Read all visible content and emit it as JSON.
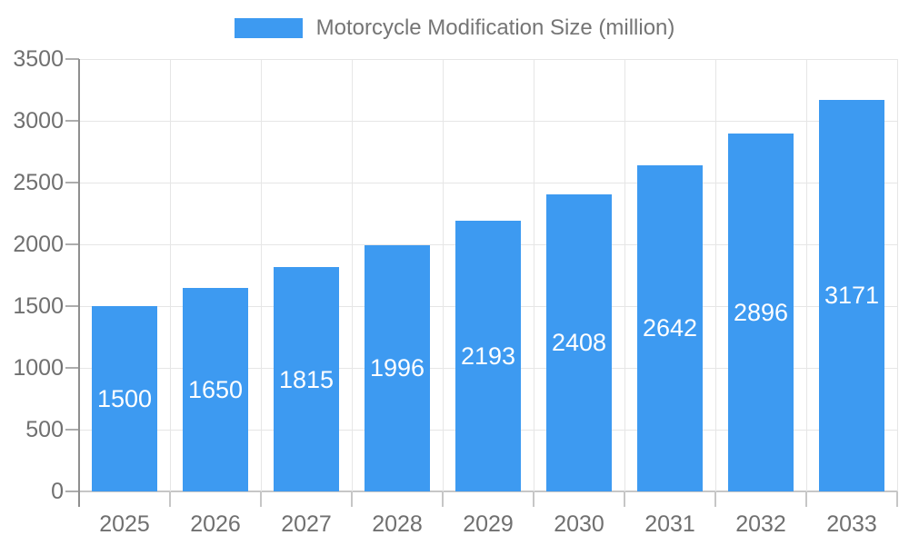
{
  "chart_data": {
    "type": "bar",
    "title": "Motorcycle Modification Size (million)",
    "categories": [
      "2025",
      "2026",
      "2027",
      "2028",
      "2029",
      "2030",
      "2031",
      "2032",
      "2033"
    ],
    "series": [
      {
        "name": "Motorcycle Modification Size (million)",
        "values": [
          1500,
          1650,
          1815,
          1996,
          2193,
          2408,
          2642,
          2896,
          3171
        ]
      }
    ],
    "xlabel": "",
    "ylabel": "",
    "ylim": [
      0,
      3500
    ],
    "yticks": [
      0,
      500,
      1000,
      1500,
      2000,
      2500,
      3000,
      3500
    ],
    "grid": true,
    "legend_position": "top",
    "value_labels": "inside-center",
    "colors": {
      "bar": "#3D9AF1",
      "value_label": "#FFFFFF",
      "axis_label": "#707070",
      "legend_text": "#757575",
      "gridline": "#E6E6E6",
      "axis_line": "#8F8F8F",
      "baseline_and_ticks": "#C6C6C6",
      "y_tick": "#ADADAD",
      "background": "#FFFFFF"
    }
  }
}
